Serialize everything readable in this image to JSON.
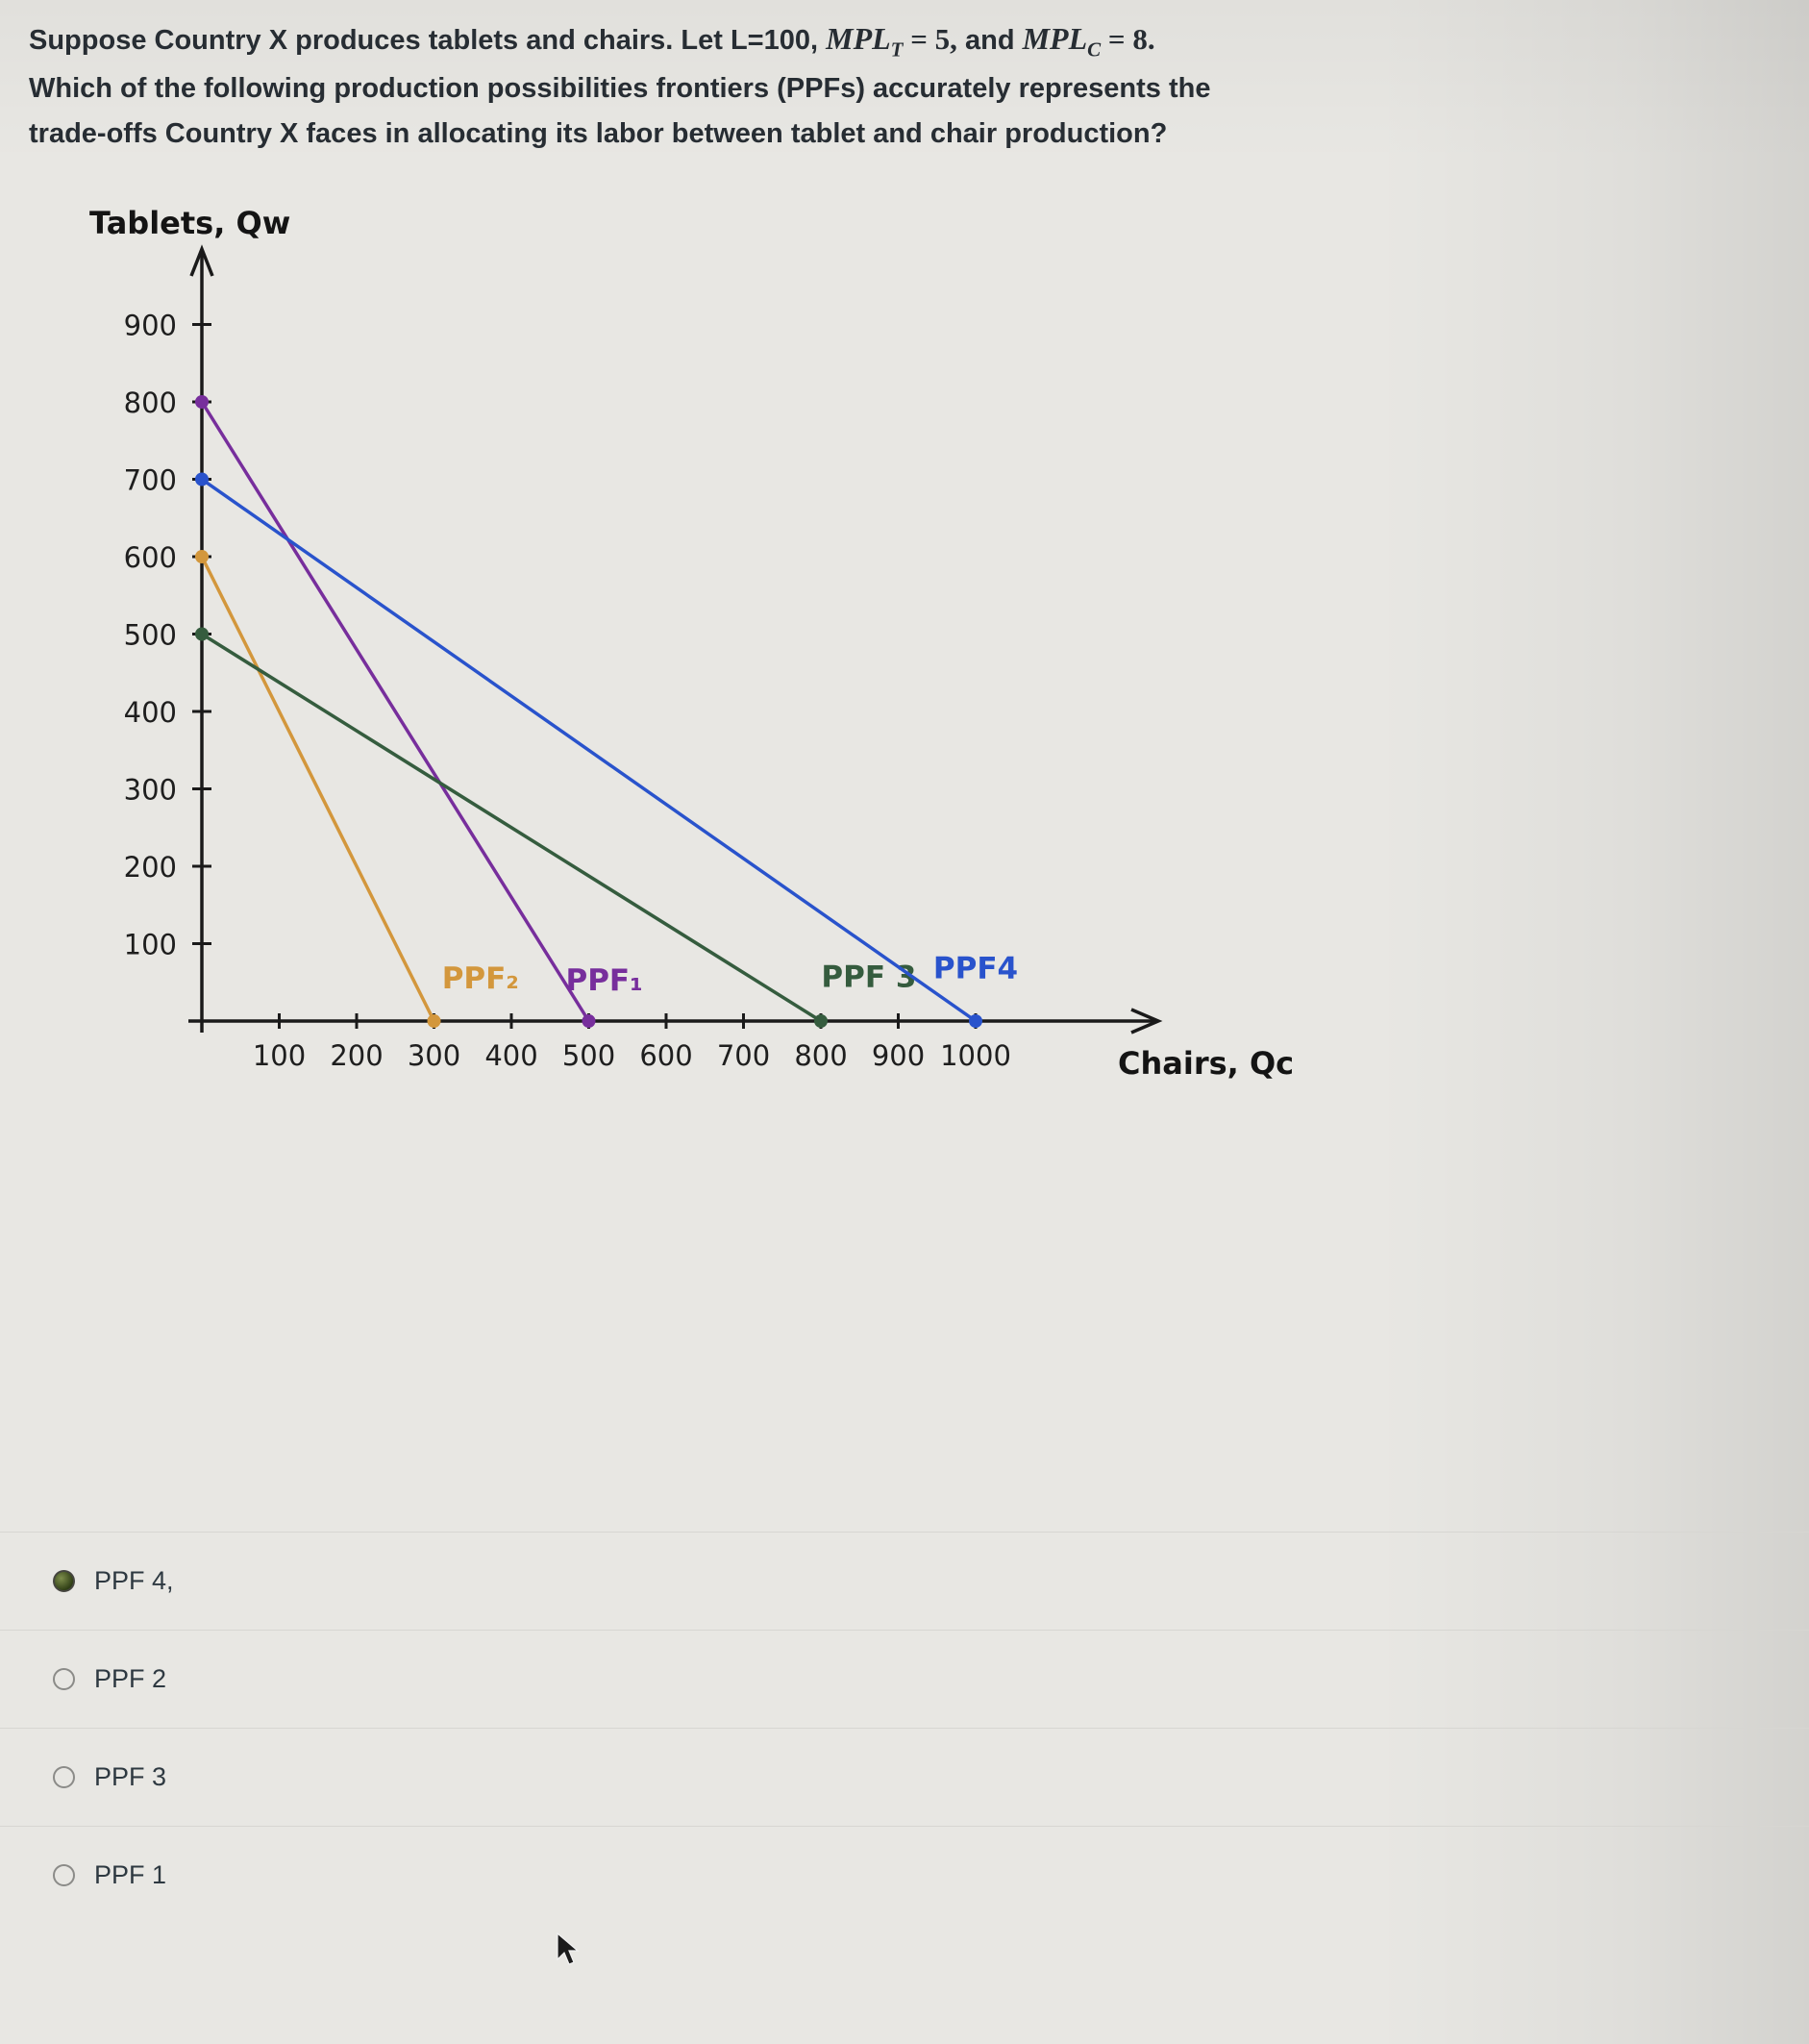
{
  "question": {
    "part1": "Suppose Country X produces tablets and chairs. Let L=100, ",
    "math1_base": "MPL",
    "math1_sub": "T",
    "eq1": " = 5,",
    "mid": " and ",
    "math2_base": "MPL",
    "math2_sub": "C",
    "eq2": " = 8.",
    "line2": "Which of the following production possibilities frontiers (PPFs) accurately represents the",
    "line3": "trade-offs Country X faces in allocating its labor between tablet and chair production?"
  },
  "chart_data": {
    "type": "line",
    "title": "",
    "xlabel": "Chairs, Qc",
    "ylabel": "Tablets, Qw",
    "xlim": [
      0,
      1100
    ],
    "ylim": [
      0,
      1000
    ],
    "x_ticks": [
      100,
      200,
      300,
      400,
      500,
      600,
      700,
      800,
      900,
      1000
    ],
    "y_ticks": [
      100,
      200,
      300,
      400,
      500,
      600,
      700,
      800,
      900
    ],
    "grid": false,
    "series": [
      {
        "name": "PPF2",
        "label": "PPF₂",
        "color": "#d3973c",
        "points": [
          [
            0,
            600
          ],
          [
            300,
            0
          ]
        ],
        "label_pos": [
          360,
          42
        ]
      },
      {
        "name": "PPF1",
        "label": "PPF₁",
        "color": "#772e9c",
        "points": [
          [
            0,
            800
          ],
          [
            500,
            0
          ]
        ],
        "label_pos": [
          520,
          40
        ]
      },
      {
        "name": "PPF3",
        "label": "PPF 3",
        "color": "#355c3e",
        "points": [
          [
            0,
            500
          ],
          [
            800,
            0
          ]
        ],
        "label_pos": [
          862,
          44
        ]
      },
      {
        "name": "PPF4",
        "label": "PPF4",
        "color": "#2953cc",
        "points": [
          [
            0,
            700
          ],
          [
            1000,
            0
          ]
        ],
        "label_pos": [
          1000,
          55
        ]
      }
    ]
  },
  "options": [
    {
      "label": "PPF 4,",
      "selected": true
    },
    {
      "label": "PPF 2",
      "selected": false
    },
    {
      "label": "PPF 3",
      "selected": false
    },
    {
      "label": "PPF 1",
      "selected": false
    }
  ],
  "colors": {
    "selected_radio": "#32411a",
    "axis": "#1a1a1a",
    "background": "#e8e7e3"
  }
}
